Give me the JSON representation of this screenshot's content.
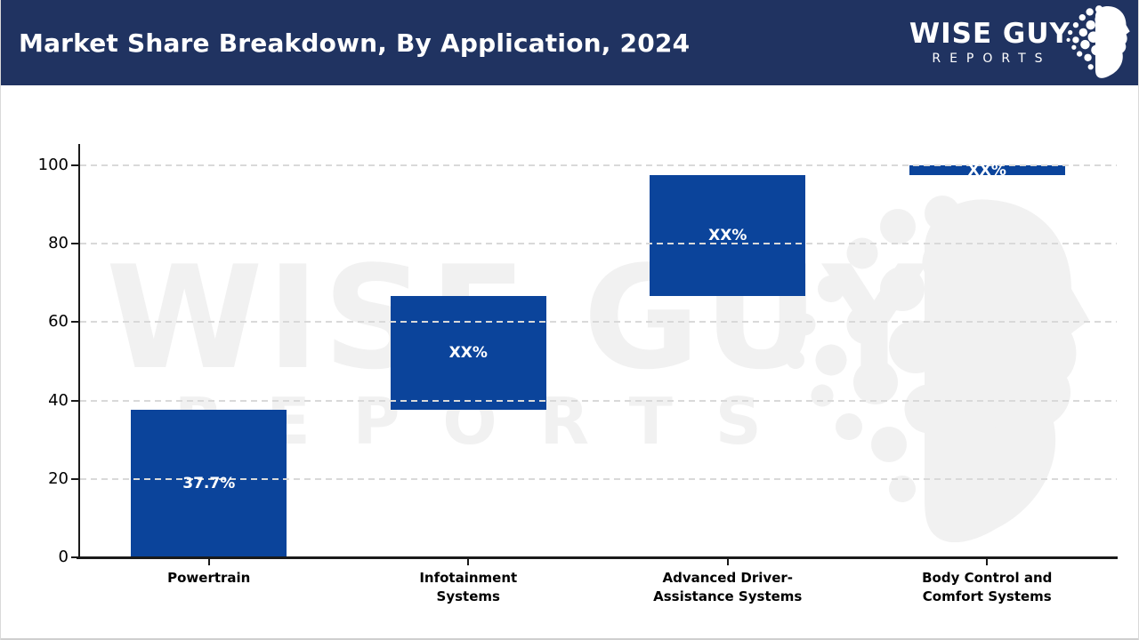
{
  "header": {
    "title": "Market Share Breakdown, By Application, 2024",
    "bg_color": "#203361",
    "logo": {
      "name": "WISE GUY",
      "reports": "REPORTS"
    }
  },
  "watermark": {
    "name": "WISE GUY",
    "reports": "REPORTS"
  },
  "chart_data": {
    "type": "bar",
    "variant": "stacked-waterfall",
    "title": "Market Share Breakdown, By Application, 2024",
    "categories": [
      "Powertrain",
      "Infotainment\nSystems",
      "Advanced Driver-\nAssistance Systems",
      "Body Control and\nComfort Systems"
    ],
    "bars": [
      {
        "category": "Powertrain",
        "start": 0,
        "end": 37.7,
        "label": "37.7%"
      },
      {
        "category": "Infotainment Systems",
        "start": 37.7,
        "end": 66.7,
        "label": "XX%"
      },
      {
        "category": "Advanced Driver-Assistance Systems",
        "start": 66.7,
        "end": 97.5,
        "label": "XX%"
      },
      {
        "category": "Body Control and Comfort Systems",
        "start": 97.5,
        "end": 100,
        "label": "XX%"
      }
    ],
    "ylim": [
      0,
      100
    ],
    "yticks": [
      0,
      20,
      40,
      60,
      80,
      100
    ],
    "xlabel": "",
    "ylabel": "",
    "grid": "dashed-horizontal-over-bars",
    "legend": "none",
    "bar_color": "#0b449b",
    "label_color": "#ffffff"
  }
}
